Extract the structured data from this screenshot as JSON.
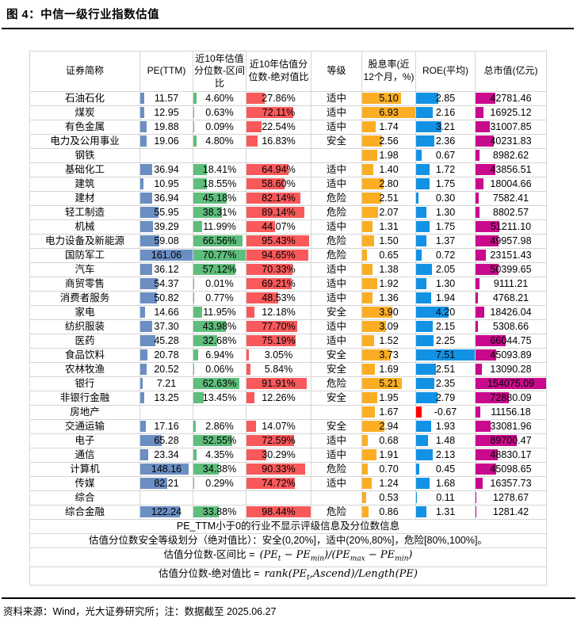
{
  "title": "图 4：中信一级行业指数估值",
  "source_note": "资料来源：Wind，光大证券研究所；注：数据截至 2025.06.27",
  "colors": {
    "pe_bar": "#6B8EC3",
    "interval_bar": "#5FBE7C",
    "absolute_bar": "#F9595B",
    "dividend_bar": "#FBAE24",
    "roe_bar": "#1292E4",
    "roe_negative": "#FE0000",
    "cap_bar": "#C90A8C",
    "grid": "#d5d5d5"
  },
  "chart_data": {
    "type": "table",
    "title": "中信一级行业指数估值",
    "columns": [
      "证券简称",
      "PE(TTM)",
      "近10年估值分位数-区间比",
      "近10年估值分位数-绝对值比",
      "等级",
      "股息率(近12个月，%)",
      "ROE(平均)",
      "总市值(亿元)"
    ],
    "rows": [
      {
        "name": "石油石化",
        "pe": "11.57",
        "interval": "4.60%",
        "absolute": "27.86%",
        "rating": "适中",
        "dividend": "5.10",
        "roe": "2.85",
        "cap": "42781.46"
      },
      {
        "name": "煤炭",
        "pe": "12.95",
        "interval": "0.63%",
        "absolute": "72.11%",
        "rating": "适中",
        "dividend": "6.93",
        "roe": "2.16",
        "cap": "16925.12"
      },
      {
        "name": "有色金属",
        "pe": "19.88",
        "interval": "0.09%",
        "absolute": "22.54%",
        "rating": "适中",
        "dividend": "1.74",
        "roe": "3.21",
        "cap": "31007.85"
      },
      {
        "name": "电力及公用事业",
        "pe": "19.06",
        "interval": "4.80%",
        "absolute": "16.83%",
        "rating": "安全",
        "dividend": "2.56",
        "roe": "2.36",
        "cap": "40231.83"
      },
      {
        "name": "钢铁",
        "pe": "",
        "interval": "",
        "absolute": "",
        "rating": "",
        "dividend": "1.98",
        "roe": "0.67",
        "cap": "8982.62"
      },
      {
        "name": "基础化工",
        "pe": "36.94",
        "interval": "18.41%",
        "absolute": "64.94%",
        "rating": "适中",
        "dividend": "1.40",
        "roe": "1.72",
        "cap": "43856.51"
      },
      {
        "name": "建筑",
        "pe": "10.95",
        "interval": "18.55%",
        "absolute": "58.60%",
        "rating": "适中",
        "dividend": "2.80",
        "roe": "1.75",
        "cap": "18004.66"
      },
      {
        "name": "建材",
        "pe": "36.94",
        "interval": "45.18%",
        "absolute": "82.14%",
        "rating": "危险",
        "dividend": "2.51",
        "roe": "0.30",
        "cap": "7582.41"
      },
      {
        "name": "轻工制造",
        "pe": "55.95",
        "interval": "38.31%",
        "absolute": "89.14%",
        "rating": "危险",
        "dividend": "2.07",
        "roe": "1.30",
        "cap": "8802.57"
      },
      {
        "name": "机械",
        "pe": "39.29",
        "interval": "11.99%",
        "absolute": "44.07%",
        "rating": "适中",
        "dividend": "1.31",
        "roe": "1.75",
        "cap": "51211.10"
      },
      {
        "name": "电力设备及新能源",
        "pe": "59.08",
        "interval": "66.56%",
        "absolute": "95.43%",
        "rating": "危险",
        "dividend": "1.50",
        "roe": "1.37",
        "cap": "49957.98"
      },
      {
        "name": "国防军工",
        "pe": "161.06",
        "interval": "70.77%",
        "absolute": "94.65%",
        "rating": "危险",
        "dividend": "0.65",
        "roe": "0.72",
        "cap": "23151.43"
      },
      {
        "name": "汽车",
        "pe": "36.12",
        "interval": "57.12%",
        "absolute": "70.33%",
        "rating": "适中",
        "dividend": "1.38",
        "roe": "2.05",
        "cap": "50399.65"
      },
      {
        "name": "商贸零售",
        "pe": "54.37",
        "interval": "0.01%",
        "absolute": "69.21%",
        "rating": "适中",
        "dividend": "1.92",
        "roe": "1.30",
        "cap": "9111.21"
      },
      {
        "name": "消费者服务",
        "pe": "50.82",
        "interval": "0.77%",
        "absolute": "48.53%",
        "rating": "适中",
        "dividend": "1.36",
        "roe": "1.94",
        "cap": "4768.21"
      },
      {
        "name": "家电",
        "pe": "14.66",
        "interval": "11.95%",
        "absolute": "12.18%",
        "rating": "安全",
        "dividend": "3.90",
        "roe": "4.20",
        "cap": "18426.04"
      },
      {
        "name": "纺织服装",
        "pe": "37.30",
        "interval": "43.98%",
        "absolute": "77.70%",
        "rating": "适中",
        "dividend": "3.09",
        "roe": "2.15",
        "cap": "5308.66"
      },
      {
        "name": "医药",
        "pe": "45.28",
        "interval": "32.68%",
        "absolute": "75.19%",
        "rating": "适中",
        "dividend": "1.52",
        "roe": "2.25",
        "cap": "66044.75"
      },
      {
        "name": "食品饮料",
        "pe": "20.78",
        "interval": "6.94%",
        "absolute": "3.05%",
        "rating": "安全",
        "dividend": "3.73",
        "roe": "7.51",
        "cap": "45093.89"
      },
      {
        "name": "农林牧渔",
        "pe": "20.52",
        "interval": "0.06%",
        "absolute": "5.84%",
        "rating": "安全",
        "dividend": "1.69",
        "roe": "2.51",
        "cap": "13090.28"
      },
      {
        "name": "银行",
        "pe": "7.21",
        "interval": "62.63%",
        "absolute": "91.91%",
        "rating": "危险",
        "dividend": "5.21",
        "roe": "2.35",
        "cap": "154075.09"
      },
      {
        "name": "非银行金融",
        "pe": "13.25",
        "interval": "13.45%",
        "absolute": "12.26%",
        "rating": "安全",
        "dividend": "1.95",
        "roe": "2.79",
        "cap": "72880.09"
      },
      {
        "name": "房地产",
        "pe": "",
        "interval": "",
        "absolute": "",
        "rating": "",
        "dividend": "1.67",
        "roe": "-0.67",
        "cap": "11156.18"
      },
      {
        "name": "交通运输",
        "pe": "17.16",
        "interval": "2.86%",
        "absolute": "14.07%",
        "rating": "安全",
        "dividend": "2.94",
        "roe": "1.93",
        "cap": "33081.96"
      },
      {
        "name": "电子",
        "pe": "65.28",
        "interval": "52.55%",
        "absolute": "72.59%",
        "rating": "适中",
        "dividend": "0.68",
        "roe": "1.48",
        "cap": "89700.47"
      },
      {
        "name": "通信",
        "pe": "23.34",
        "interval": "4.35%",
        "absolute": "30.29%",
        "rating": "适中",
        "dividend": "1.91",
        "roe": "2.13",
        "cap": "48830.17"
      },
      {
        "name": "计算机",
        "pe": "148.16",
        "interval": "34.38%",
        "absolute": "90.33%",
        "rating": "危险",
        "dividend": "0.70",
        "roe": "0.45",
        "cap": "45098.65"
      },
      {
        "name": "传媒",
        "pe": "82.21",
        "interval": "0.29%",
        "absolute": "74.72%",
        "rating": "适中",
        "dividend": "1.24",
        "roe": "1.68",
        "cap": "16357.73"
      },
      {
        "name": "综合",
        "pe": "",
        "interval": "",
        "absolute": "",
        "rating": "",
        "dividend": "0.53",
        "roe": "0.11",
        "cap": "1278.67"
      },
      {
        "name": "综合金融",
        "pe": "122.24",
        "interval": "33.88%",
        "absolute": "98.44%",
        "rating": "危险",
        "dividend": "0.86",
        "roe": "1.31",
        "cap": "1281.42"
      }
    ]
  },
  "footnotes": {
    "note1": "PE_TTM小于0的行业不显示评级信息及分位数信息",
    "note2": "估值分位数安全等级划分（绝对值比）：安全(0,20%]，适中(20%,80%]，危险[80%,100%]。",
    "formula1_label": "估值分位数-区间比 =",
    "formula1": "(PE_{t} − PE_{min})/(PE_{max} − PE_{min})",
    "formula2_label": "估值分位数-绝对值比 =",
    "formula2": "rank(PE_{t},Ascend)/Length(PE)"
  }
}
